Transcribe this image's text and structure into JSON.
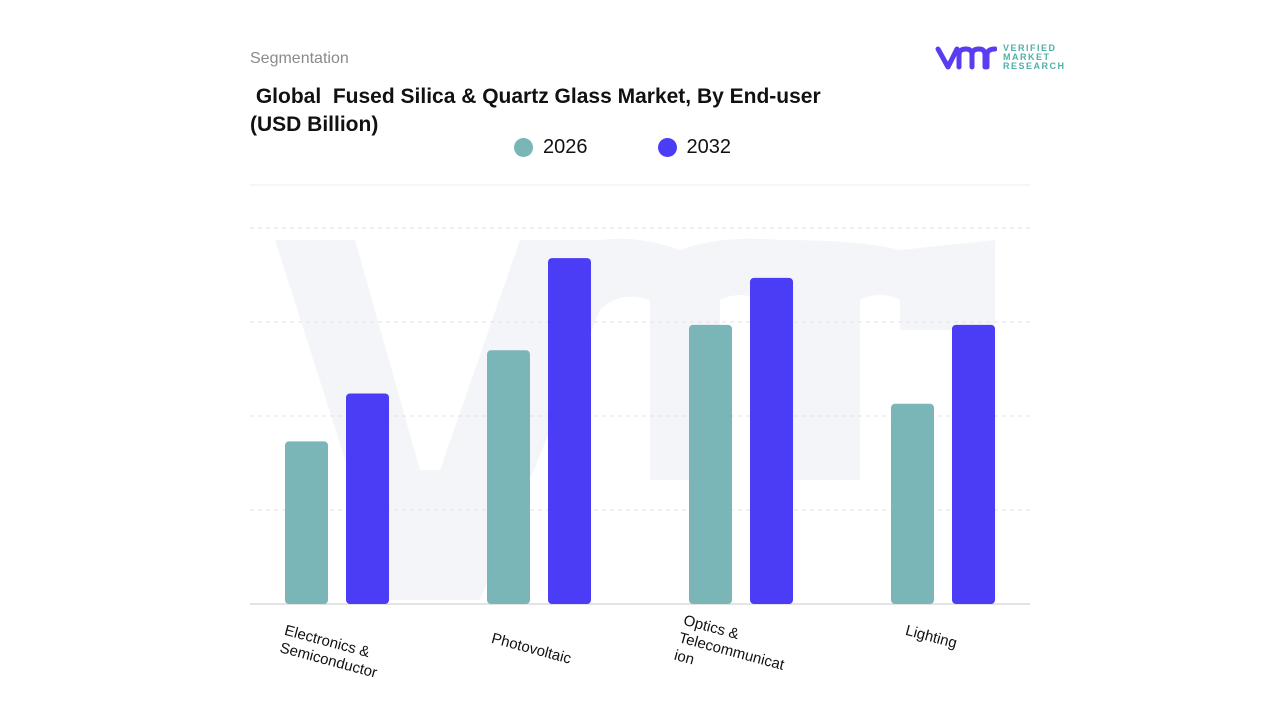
{
  "header": {
    "section": "Segmentation",
    "title": " Global  Fused Silica & Quartz Glass Market, By End-user\n(USD Billion)"
  },
  "logo": {
    "text": "VERIFIED® MARKET RESEARCH",
    "lines": [
      "VERIFIED",
      "MARKET",
      "RESEARCH"
    ]
  },
  "colors": {
    "2026": "#7ab5b7",
    "2032": "#4b3cf6",
    "grid": "#e3e3e3",
    "watermark": "#f3f4f8"
  },
  "chart_data": {
    "type": "bar",
    "title": "Global  Fused Silica & Quartz Glass Market, By End-user (USD Billion)",
    "categories": [
      "Electronics &\nSemiconductor",
      "Photovoltaic",
      "Optics &\nTelecommunicat\nion",
      "Lighting"
    ],
    "series": [
      {
        "name": "2026",
        "values": [
          1.73,
          2.7,
          2.97,
          2.13
        ]
      },
      {
        "name": "2032",
        "values": [
          2.24,
          3.68,
          3.47,
          2.97
        ]
      }
    ],
    "ylim": [
      0,
      4
    ],
    "y_ticks_labeled": false,
    "grid": true,
    "legend": "top-center",
    "xlabel": "",
    "ylabel": ""
  }
}
